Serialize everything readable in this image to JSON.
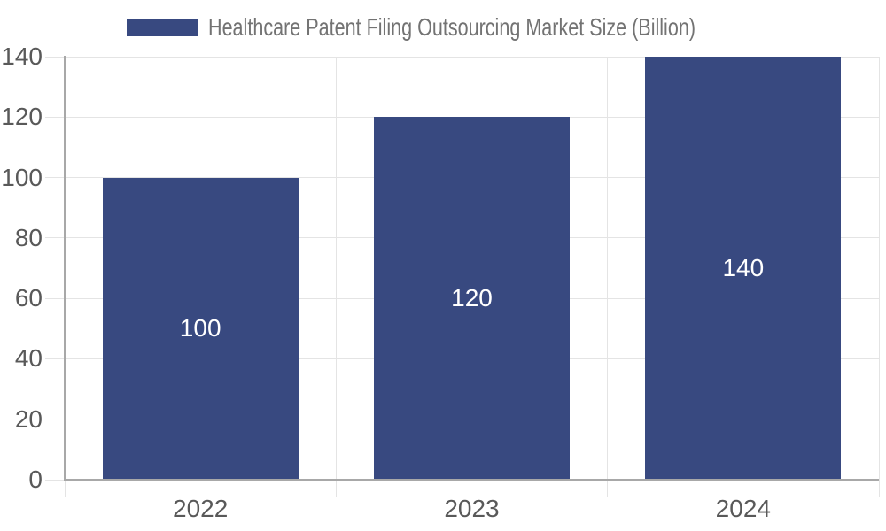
{
  "legend": {
    "label": "Healthcare Patent Filing Outsourcing Market Size (Billion)"
  },
  "chart_data": {
    "type": "bar",
    "title": "Healthcare Patent Filing Outsourcing Market Size (Billion)",
    "categories": [
      "2022",
      "2023",
      "2024"
    ],
    "values": [
      100,
      120,
      140
    ],
    "data_labels": [
      "100",
      "120",
      "140"
    ],
    "xlabel": "",
    "ylabel": "",
    "ylim": [
      0,
      140
    ],
    "yticks": [
      0,
      20,
      40,
      60,
      80,
      100,
      120,
      140
    ],
    "grid": true,
    "legend_position": "top-center",
    "colors": {
      "bar": "#384980",
      "bar_label": "#ffffff",
      "axis_text": "#595959",
      "title_text": "#737373",
      "gridline": "#e4e4e4",
      "axis_line": "#a8a8a8",
      "background": "#ffffff"
    }
  }
}
